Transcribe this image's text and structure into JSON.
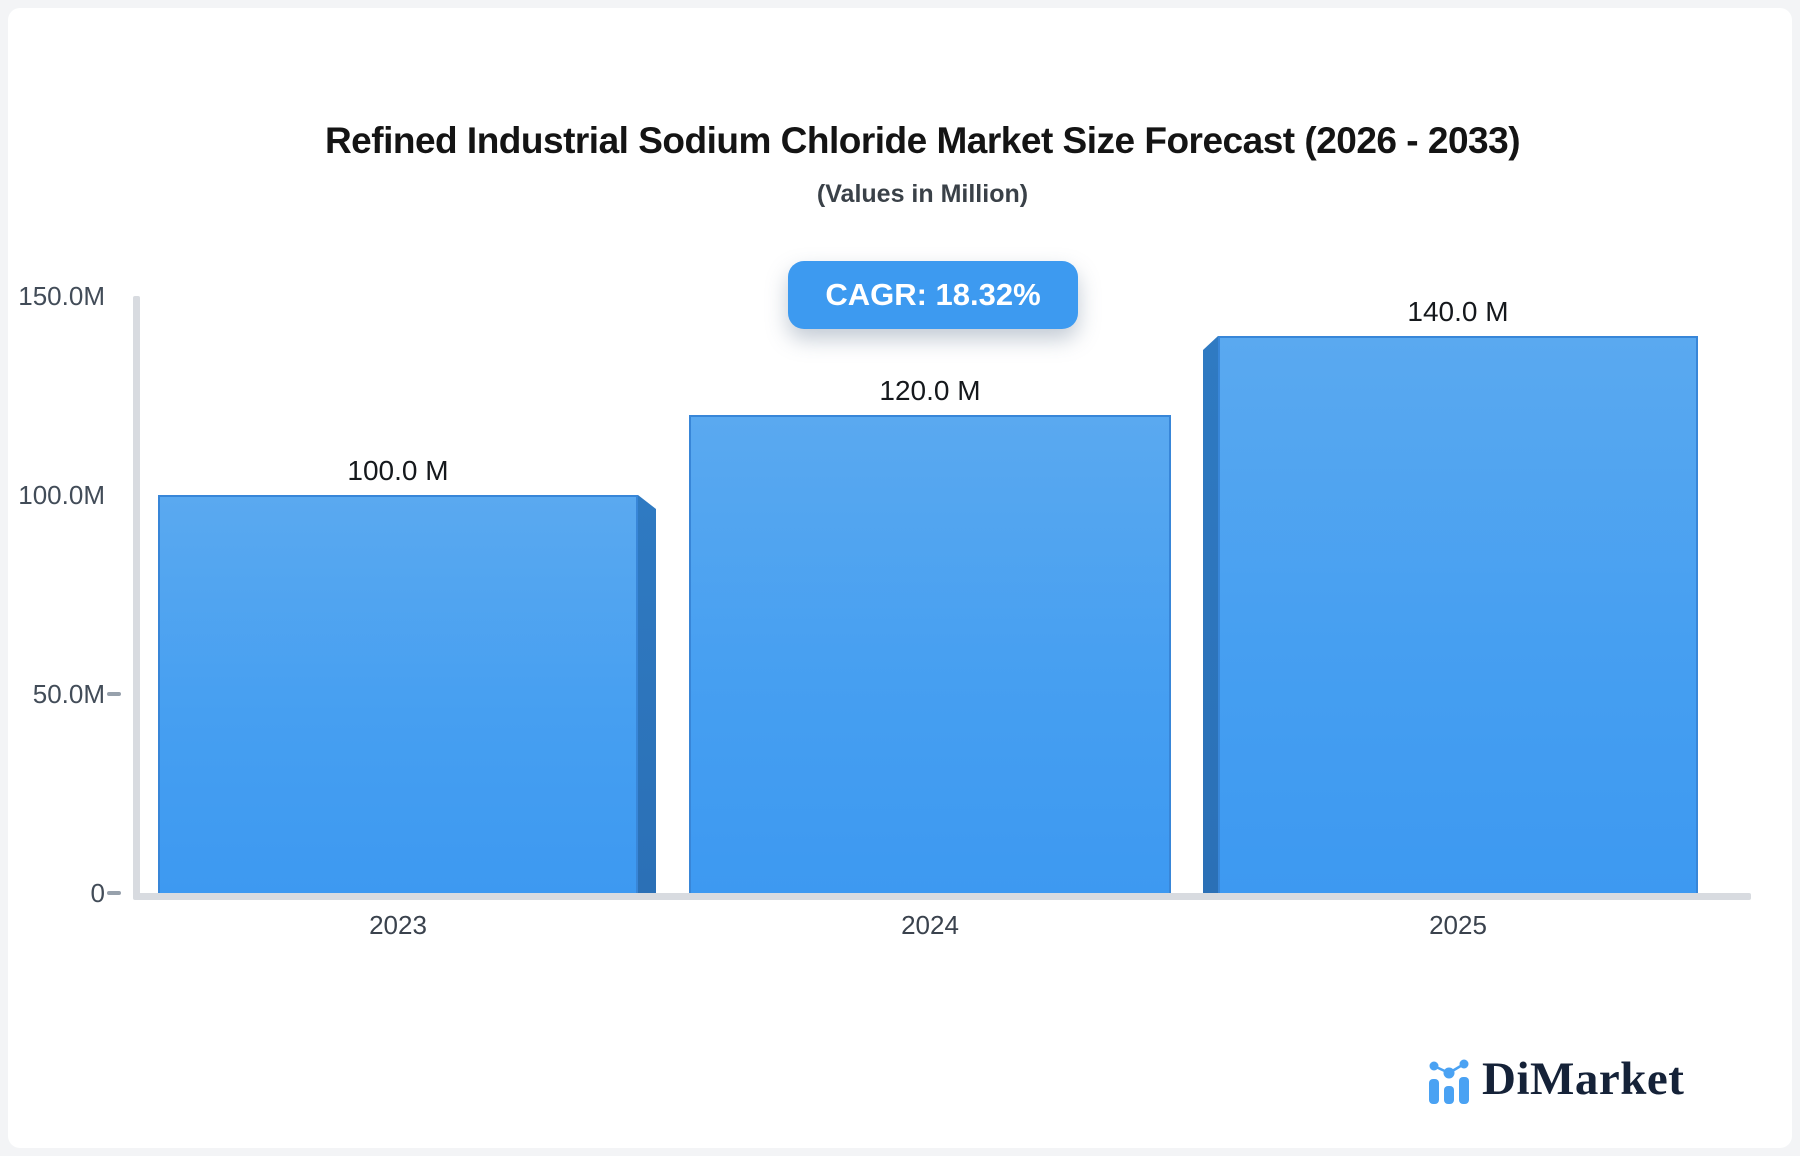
{
  "header": {
    "title": "Refined Industrial Sodium Chloride Market Size Forecast (2026 - 2033)",
    "subtitle": "(Values in Million)",
    "cagr_label": "CAGR: 18.32%"
  },
  "chart_data": {
    "type": "bar",
    "title": "Refined Industrial Sodium Chloride Market Size Forecast (2026 - 2033)",
    "subtitle": "(Values in Million)",
    "categories": [
      "2023",
      "2024",
      "2025"
    ],
    "values": [
      100.0,
      120.0,
      140.0
    ],
    "value_labels": [
      "100.0 M",
      "120.0 M",
      "140.0 M"
    ],
    "cagr": "18.32%",
    "unit": "Million",
    "ylim": [
      0,
      150
    ],
    "y_tick_labels": [
      "150.0M",
      "100.0M",
      "50.0M",
      "0"
    ],
    "grid": false,
    "legend": false,
    "style": "3d-bars, side face toward center bar",
    "bar_colors": {
      "face_top": "#5aa9f0",
      "face_bottom": "#3d99f1",
      "side_3d": "#2b72b9",
      "border": "#3886d8"
    }
  },
  "footer": {
    "brand": "DiMarket",
    "logo_icon": "mini-bar-chart-icon"
  },
  "colors": {
    "accent_blue": "#3d9af0",
    "axis_gray": "#d8dbe0",
    "title_text": "#141414",
    "label_text": "#424c58",
    "brand_navy": "#152238",
    "page_background": "#f3f4f6",
    "card_background": "#ffffff"
  }
}
